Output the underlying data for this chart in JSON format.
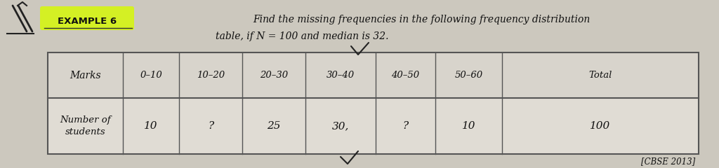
{
  "example_label": "EXAMPLE 6",
  "title_line1": "Find the missing frequencies in the following frequency distribution",
  "title_line2": "table, if N = 100 and median is 32.",
  "col_headers": [
    "Marks",
    "0–10",
    "10–20",
    "20–30",
    "30–40",
    "40–50",
    "50–60",
    "Total"
  ],
  "row1_label": "Number of\nstudents",
  "row1_values": [
    "10",
    "?",
    "25",
    "30,",
    "?",
    "10",
    "100"
  ],
  "cbse_label": "[CBSE 2013]",
  "highlight_color": "#d4f024",
  "page_color": "#ccc8be",
  "table_bg_header": "#d8d4cc",
  "table_bg_data": "#e0dcd4",
  "table_border": "#555555",
  "text_color": "#111111"
}
